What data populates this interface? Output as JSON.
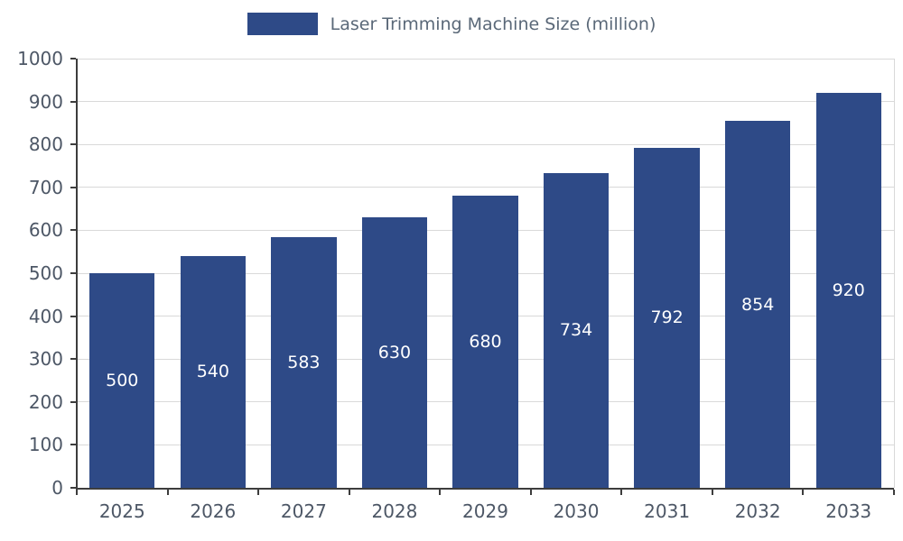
{
  "chart": {
    "legend_label": "Laser Trimming Machine Size (million)",
    "colors": {
      "bar": "#2e4a87",
      "legend_text": "#5a6878",
      "axis_line": "#3d3d3d",
      "grid_line": "#d9d9d9",
      "tick_text": "#4d5766",
      "value_label": "#ffffff",
      "background": "#ffffff"
    }
  },
  "chart_data": {
    "type": "bar",
    "title": "Laser Trimming Machine Size (million)",
    "categories": [
      "2025",
      "2026",
      "2027",
      "2028",
      "2029",
      "2030",
      "2031",
      "2032",
      "2033"
    ],
    "values": [
      500,
      540,
      583,
      630,
      680,
      734,
      792,
      854,
      920
    ],
    "xlabel": "",
    "ylabel": "",
    "ylim": [
      0,
      1000
    ],
    "ytick_step": 100,
    "grid": true,
    "legend_position": "top",
    "value_labels": "inside-center",
    "bar_width_fraction": 0.72
  }
}
